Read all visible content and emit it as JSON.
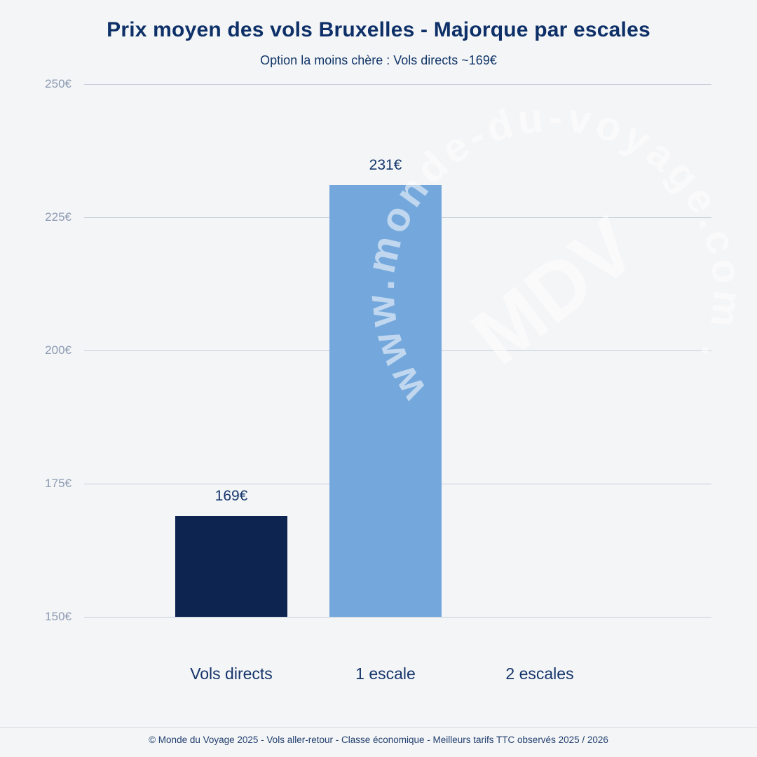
{
  "header": {
    "title": "Prix moyen des vols Bruxelles - Majorque par escales",
    "subtitle": "Option la moins chère : Vols directs ~169€"
  },
  "chart_data": {
    "type": "bar",
    "title": "Prix moyen des vols Bruxelles - Majorque par escales",
    "categories": [
      "Vols directs",
      "1 escale",
      "2 escales"
    ],
    "values": [
      169,
      231,
      null
    ],
    "value_labels": [
      "169€",
      "231€",
      ""
    ],
    "ylim": [
      150,
      250
    ],
    "yticks": [
      150,
      175,
      200,
      225,
      250
    ],
    "ytick_labels": [
      "150€",
      "175€",
      "200€",
      "225€",
      "250€"
    ],
    "bar_colors": [
      "#0d2450",
      "#74a8dc",
      null
    ],
    "grid": true,
    "legend": "none",
    "xlabel": "",
    "ylabel": ""
  },
  "watermark": {
    "circle_text": "www.monde-du-voyage.com .",
    "center_text": "MDV"
  },
  "footer": {
    "text": "© Monde du Voyage 2025 - Vols aller-retour - Classe économique - Meilleurs tarifs TTC observés 2025 / 2026"
  },
  "colors": {
    "background": "#f4f5f7",
    "title": "#0e3068",
    "bar_dark": "#0d2450",
    "bar_light": "#74a8dc",
    "gridline": "#c6cdda",
    "ytick": "#8c9ab2"
  }
}
